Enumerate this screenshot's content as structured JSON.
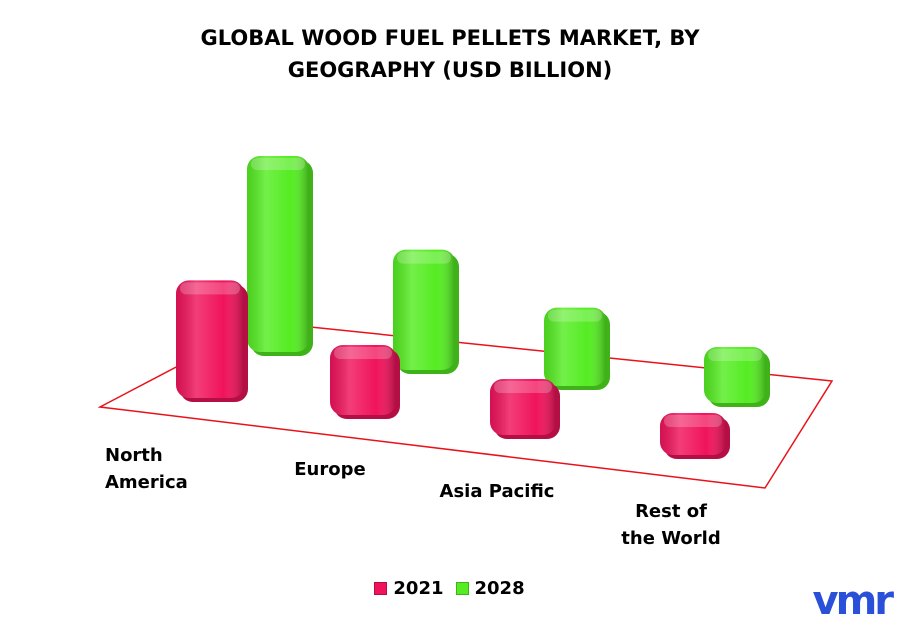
{
  "chart_data": {
    "type": "bar3d",
    "title": "GLOBAL WOOD FUEL PELLETS MARKET, BY GEOGRAPHY (USD BILLION)",
    "categories": [
      "North America",
      "Europe",
      "Asia Pacific",
      "Rest of the World"
    ],
    "series": [
      {
        "name": "2021",
        "color": "#f0135c",
        "values": [
          4.2,
          2.5,
          2.0,
          1.5
        ]
      },
      {
        "name": "2028",
        "color": "#55ec22",
        "values": [
          7.0,
          4.3,
          2.8,
          2.0
        ]
      }
    ]
  },
  "logo": "vmr"
}
